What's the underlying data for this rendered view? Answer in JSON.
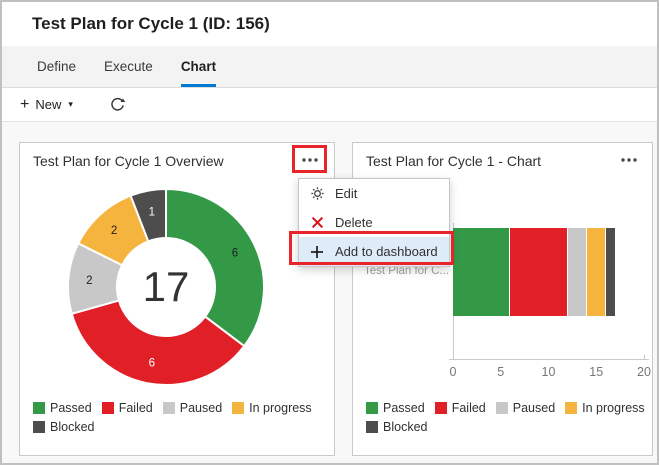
{
  "window": {
    "title": "Test Plan for Cycle 1 (ID: 156)"
  },
  "tabs": [
    {
      "label": "Define",
      "active": false
    },
    {
      "label": "Execute",
      "active": false
    },
    {
      "label": "Chart",
      "active": true
    }
  ],
  "toolbar": {
    "new_label": "New"
  },
  "colors": {
    "accent": "#0078d4",
    "annotation_highlight": "#e8232a",
    "menu_hover": "#deecf9",
    "passed": "#339947",
    "failed": "#e02026",
    "paused": "#c8c8c8",
    "in_progress": "#f5b43d",
    "blocked": "#4d4d4d"
  },
  "context_menu": {
    "items": [
      {
        "label": "Edit",
        "icon": "gear-icon",
        "highlighted": false
      },
      {
        "label": "Delete",
        "icon": "delete-x-icon",
        "highlighted": false
      },
      {
        "label": "Add to dashboard",
        "icon": "plus-icon",
        "highlighted": true
      }
    ]
  },
  "more_button_glyph": "ellipsis",
  "legend": {
    "items": [
      {
        "label": "Passed",
        "color": "#339947"
      },
      {
        "label": "Failed",
        "color": "#e02026"
      },
      {
        "label": "Paused",
        "color": "#c8c8c8"
      },
      {
        "label": "In progress",
        "color": "#f5b43d"
      },
      {
        "label": "Blocked",
        "color": "#4d4d4d"
      }
    ]
  },
  "chart_data": [
    {
      "type": "pie",
      "subtype": "donut",
      "title": "Test Plan for Cycle 1 Overview",
      "center_total": "17",
      "total": 17,
      "legend_position": "bottom",
      "segments": [
        {
          "label": "Passed",
          "value": 6,
          "color": "#339947",
          "label_color": "#1e1e1e"
        },
        {
          "label": "Failed",
          "value": 6,
          "color": "#e02026",
          "label_color": "#ffffff"
        },
        {
          "label": "Paused",
          "value": 2,
          "color": "#c8c8c8",
          "label_color": "#1e1e1e"
        },
        {
          "label": "In progress",
          "value": 2,
          "color": "#f5b43d",
          "label_color": "#1e1e1e"
        },
        {
          "label": "Blocked",
          "value": 1,
          "color": "#4d4d4d",
          "label_color": "#ffffff"
        }
      ]
    },
    {
      "type": "bar",
      "subtype": "horizontal-stacked",
      "title": "Test Plan for Cycle 1 - Chart",
      "category_label": "Test Plan for C...",
      "xlim": [
        0,
        20
      ],
      "x_ticks": [
        0,
        5,
        10,
        15,
        20
      ],
      "grid": false,
      "legend_position": "bottom",
      "segments": [
        {
          "label": "Passed",
          "value": 6,
          "color": "#339947"
        },
        {
          "label": "Failed",
          "value": 6,
          "color": "#e02026"
        },
        {
          "label": "Paused",
          "value": 2,
          "color": "#c8c8c8"
        },
        {
          "label": "In progress",
          "value": 2,
          "color": "#f5b43d"
        },
        {
          "label": "Blocked",
          "value": 1,
          "color": "#4d4d4d"
        }
      ]
    }
  ]
}
